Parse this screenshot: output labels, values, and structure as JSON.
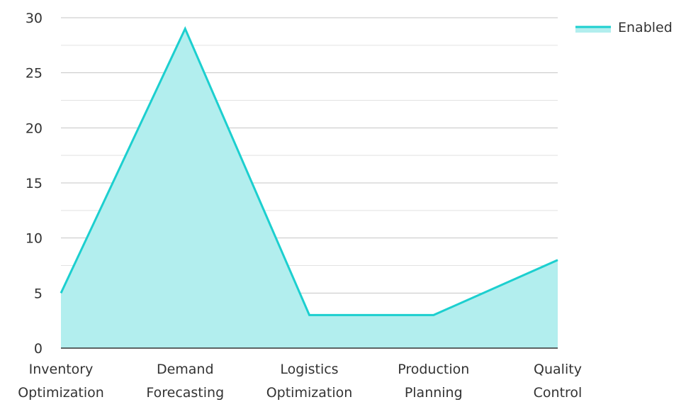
{
  "chart_data": {
    "type": "area",
    "categories": [
      "Inventory Optimization",
      "Demand Forecasting",
      "Logistics Optimization",
      "Production Planning",
      "Quality Control"
    ],
    "category_lines": [
      [
        "Inventory",
        "Optimization"
      ],
      [
        "Demand",
        "Forecasting"
      ],
      [
        "Logistics",
        "Optimization"
      ],
      [
        "Production",
        "Planning"
      ],
      [
        "Quality",
        "Control"
      ]
    ],
    "series": [
      {
        "name": "Enabled",
        "values": [
          5,
          29,
          3,
          3,
          8
        ],
        "color": "#1ccfcf",
        "fill": "#b2eeee"
      }
    ],
    "ylim": [
      0,
      30
    ],
    "yticks": [
      0,
      5,
      10,
      15,
      20,
      25,
      30
    ],
    "grid": true,
    "legend": "top-right"
  }
}
